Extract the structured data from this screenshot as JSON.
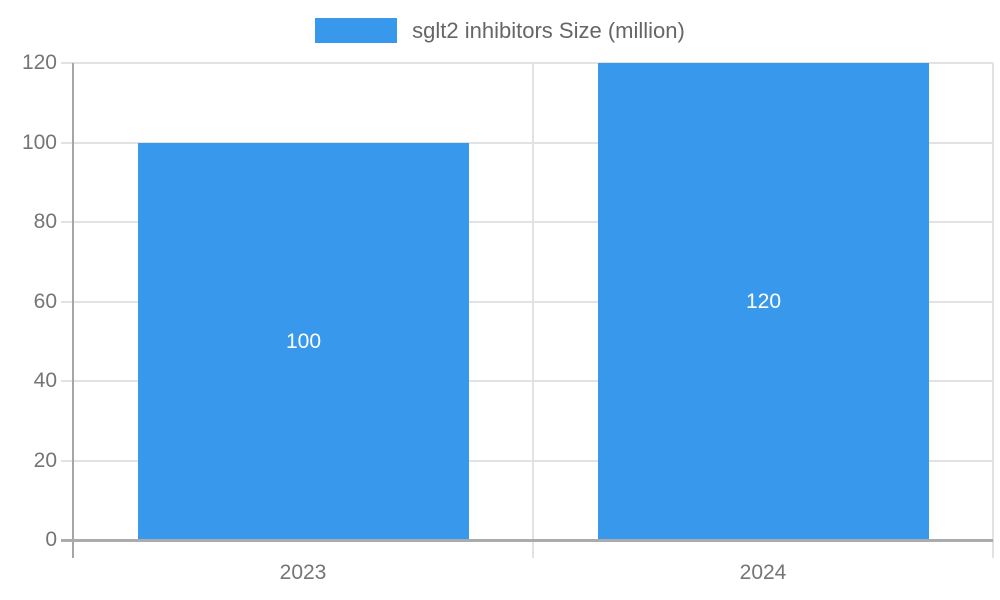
{
  "chart_data": {
    "type": "bar",
    "title": "",
    "legend": "sglt2 inhibitors Size (million)",
    "legend_position": "top-center",
    "categories": [
      "2023",
      "2024"
    ],
    "values": [
      100,
      120
    ],
    "value_labels": [
      "100",
      "120"
    ],
    "xlabel": "",
    "ylabel": "",
    "ylim": [
      0,
      120
    ],
    "yticks": [
      0,
      20,
      40,
      60,
      80,
      100,
      120
    ],
    "grid": "horizontal gridlines plus vertical category separators",
    "bar_color": "#3899EC",
    "value_label_color": "#FFFFFF",
    "axis_label_color": "#757575",
    "legend_text_color": "#666666",
    "gridline_color": "#E2E2E2",
    "axis_line_color": "#ABABAB",
    "background_color": "#FFFFFF"
  }
}
